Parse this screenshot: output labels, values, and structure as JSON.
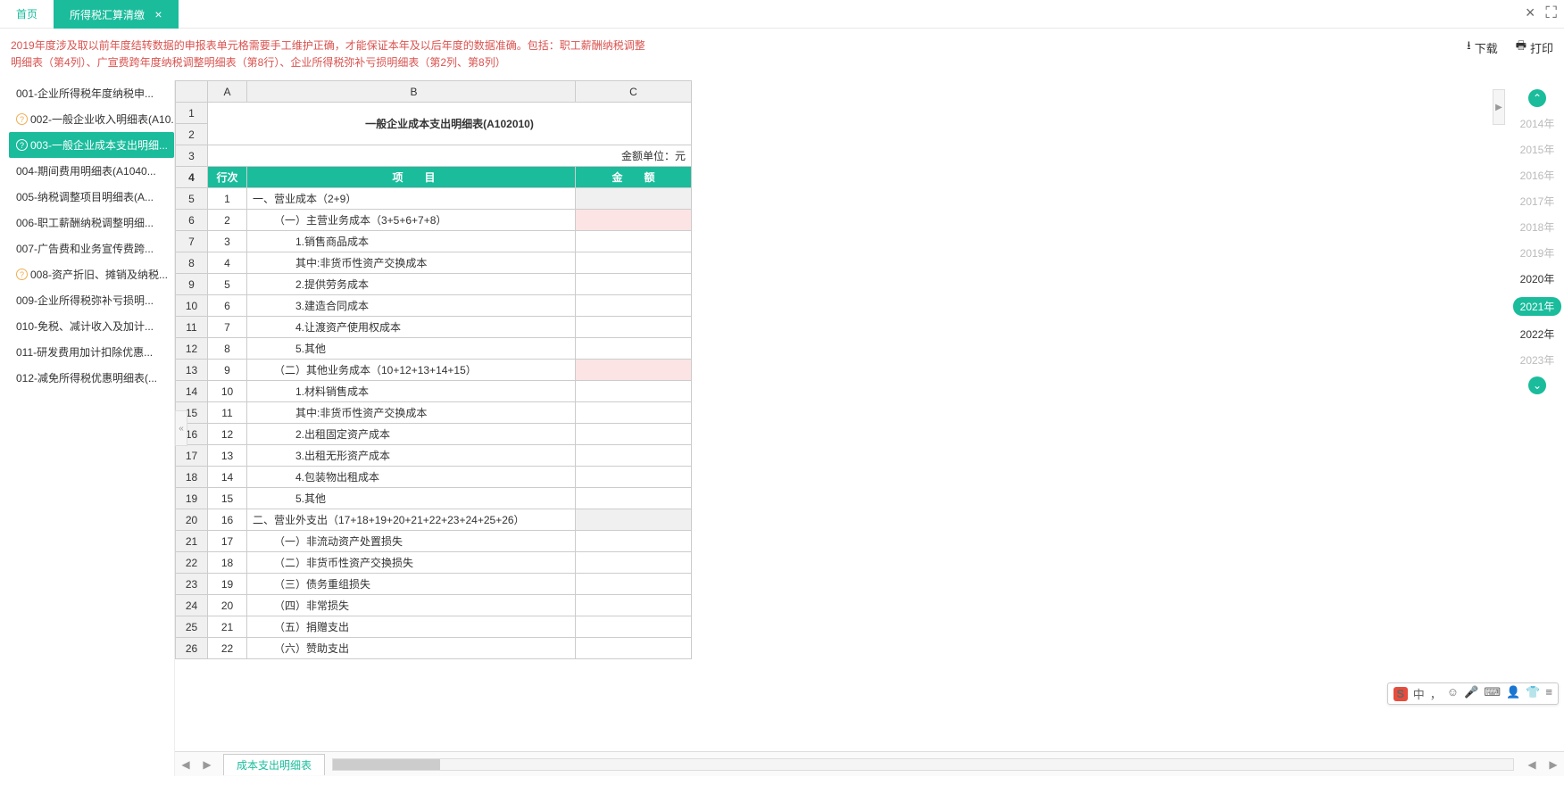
{
  "tabs": {
    "home": "首页",
    "active": "所得税汇算清缴"
  },
  "warning": "2019年度涉及取以前年度结转数据的申报表单元格需要手工维护正确，才能保证本年及以后年度的数据准确。包括：职工薪酬纳税调整明细表（第4列）、广宣费跨年度纳税调整明细表（第8行）、企业所得税弥补亏损明细表（第2列、第8列）",
  "actions": {
    "download": "下载",
    "print": "打印"
  },
  "sidebar": [
    {
      "q": false,
      "label": "001-企业所得税年度纳税申..."
    },
    {
      "q": true,
      "label": "002-一般企业收入明细表(A10..."
    },
    {
      "q": true,
      "label": "003-一般企业成本支出明细...",
      "active": true
    },
    {
      "q": false,
      "label": "004-期间费用明细表(A1040..."
    },
    {
      "q": false,
      "label": "005-纳税调整项目明细表(A..."
    },
    {
      "q": false,
      "label": "006-职工薪酬纳税调整明细..."
    },
    {
      "q": false,
      "label": "007-广告费和业务宣传费跨..."
    },
    {
      "q": true,
      "label": "008-资产折旧、摊销及纳税..."
    },
    {
      "q": false,
      "label": "009-企业所得税弥补亏损明..."
    },
    {
      "q": false,
      "label": "010-免税、减计收入及加计..."
    },
    {
      "q": false,
      "label": "011-研发费用加计扣除优惠..."
    },
    {
      "q": false,
      "label": "012-减免所得税优惠明细表(..."
    }
  ],
  "sheet": {
    "title": "一般企业成本支出明细表(A102010)",
    "unit": "金额单位：元",
    "columns": [
      "A",
      "B",
      "C"
    ],
    "header": {
      "rownum": "行次",
      "item": "项　　目",
      "amount": "金　　额"
    },
    "rows": [
      {
        "n": "1",
        "item": "一、营业成本（2+9）",
        "indent": 0,
        "c": "gray"
      },
      {
        "n": "2",
        "item": "（一）主营业务成本（3+5+6+7+8）",
        "indent": 1,
        "c": "pink"
      },
      {
        "n": "3",
        "item": "1.销售商品成本",
        "indent": 2,
        "c": ""
      },
      {
        "n": "4",
        "item": "其中:非货币性资产交换成本",
        "indent": 2,
        "c": ""
      },
      {
        "n": "5",
        "item": "2.提供劳务成本",
        "indent": 2,
        "c": ""
      },
      {
        "n": "6",
        "item": "3.建造合同成本",
        "indent": 2,
        "c": ""
      },
      {
        "n": "7",
        "item": "4.让渡资产使用权成本",
        "indent": 2,
        "c": ""
      },
      {
        "n": "8",
        "item": "5.其他",
        "indent": 2,
        "c": ""
      },
      {
        "n": "9",
        "item": "（二）其他业务成本（10+12+13+14+15）",
        "indent": 1,
        "c": "pink"
      },
      {
        "n": "10",
        "item": "1.材料销售成本",
        "indent": 2,
        "c": ""
      },
      {
        "n": "11",
        "item": "其中:非货币性资产交换成本",
        "indent": 2,
        "c": ""
      },
      {
        "n": "12",
        "item": "2.出租固定资产成本",
        "indent": 2,
        "c": ""
      },
      {
        "n": "13",
        "item": "3.出租无形资产成本",
        "indent": 2,
        "c": ""
      },
      {
        "n": "14",
        "item": "4.包装物出租成本",
        "indent": 2,
        "c": ""
      },
      {
        "n": "15",
        "item": "5.其他",
        "indent": 2,
        "c": ""
      },
      {
        "n": "16",
        "item": "二、营业外支出（17+18+19+20+21+22+23+24+25+26）",
        "indent": 0,
        "c": "gray"
      },
      {
        "n": "17",
        "item": "（一）非流动资产处置损失",
        "indent": 1,
        "c": ""
      },
      {
        "n": "18",
        "item": "（二）非货币性资产交换损失",
        "indent": 1,
        "c": ""
      },
      {
        "n": "19",
        "item": "（三）债务重组损失",
        "indent": 1,
        "c": ""
      },
      {
        "n": "20",
        "item": "（四）非常损失",
        "indent": 1,
        "c": ""
      },
      {
        "n": "21",
        "item": "（五）捐赠支出",
        "indent": 1,
        "c": ""
      },
      {
        "n": "22",
        "item": "（六）赞助支出",
        "indent": 1,
        "c": ""
      }
    ],
    "tab": "成本支出明细表"
  },
  "years": [
    "2014年",
    "2015年",
    "2016年",
    "2017年",
    "2018年",
    "2019年",
    "2020年",
    "2021年",
    "2022年",
    "2023年"
  ],
  "activeYear": "2021年",
  "nearYears": [
    "2020年",
    "2022年"
  ],
  "ime": [
    "中",
    "，",
    "☺",
    "🎤",
    "⌨",
    "👤",
    "👕",
    "≡"
  ]
}
